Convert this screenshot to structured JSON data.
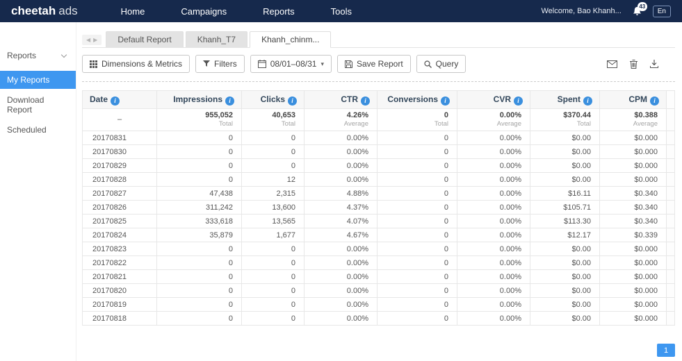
{
  "navbar": {
    "brand_bold": "cheetah",
    "brand_light": "ads",
    "items": [
      {
        "label": "Home"
      },
      {
        "label": "Campaigns"
      },
      {
        "label": "Reports"
      },
      {
        "label": "Tools"
      }
    ],
    "welcome": "Welcome,",
    "username": "Bao Khanh...",
    "notification_count": "43",
    "language": "En"
  },
  "sidebar": {
    "section": "Reports",
    "items": [
      {
        "label": "My Reports",
        "active": true
      },
      {
        "label": "Download Report",
        "active": false
      },
      {
        "label": "Scheduled",
        "active": false
      }
    ]
  },
  "tabs": [
    {
      "label": "Default Report",
      "active": false
    },
    {
      "label": "Khanh_T7",
      "active": false
    },
    {
      "label": "Khanh_chinm...",
      "active": true
    }
  ],
  "toolbar": {
    "dimensions_metrics_label": "Dimensions & Metrics",
    "filters_label": "Filters",
    "date_range": "08/01–08/31",
    "save_report_label": "Save Report",
    "query_label": "Query"
  },
  "icons": {
    "prev_arrow": "◀",
    "next_arrow": "▶",
    "caret_down": "▾",
    "info_glyph": "i"
  },
  "table": {
    "columns": [
      "Date",
      "Impressions",
      "Clicks",
      "CTR",
      "Conversions",
      "CVR",
      "Spent",
      "CPM"
    ],
    "summary": {
      "date": "–",
      "values": [
        {
          "value": "955,052",
          "sub": "Total"
        },
        {
          "value": "40,653",
          "sub": "Total"
        },
        {
          "value": "4.26%",
          "sub": "Average"
        },
        {
          "value": "0",
          "sub": "Total"
        },
        {
          "value": "0.00%",
          "sub": "Average"
        },
        {
          "value": "$370.44",
          "sub": "Total"
        },
        {
          "value": "$0.388",
          "sub": "Average"
        }
      ]
    },
    "rows": [
      [
        "20170831",
        "0",
        "0",
        "0.00%",
        "0",
        "0.00%",
        "$0.00",
        "$0.000"
      ],
      [
        "20170830",
        "0",
        "0",
        "0.00%",
        "0",
        "0.00%",
        "$0.00",
        "$0.000"
      ],
      [
        "20170829",
        "0",
        "0",
        "0.00%",
        "0",
        "0.00%",
        "$0.00",
        "$0.000"
      ],
      [
        "20170828",
        "0",
        "12",
        "0.00%",
        "0",
        "0.00%",
        "$0.00",
        "$0.000"
      ],
      [
        "20170827",
        "47,438",
        "2,315",
        "4.88%",
        "0",
        "0.00%",
        "$16.11",
        "$0.340"
      ],
      [
        "20170826",
        "311,242",
        "13,600",
        "4.37%",
        "0",
        "0.00%",
        "$105.71",
        "$0.340"
      ],
      [
        "20170825",
        "333,618",
        "13,565",
        "4.07%",
        "0",
        "0.00%",
        "$113.30",
        "$0.340"
      ],
      [
        "20170824",
        "35,879",
        "1,677",
        "4.67%",
        "0",
        "0.00%",
        "$12.17",
        "$0.339"
      ],
      [
        "20170823",
        "0",
        "0",
        "0.00%",
        "0",
        "0.00%",
        "$0.00",
        "$0.000"
      ],
      [
        "20170822",
        "0",
        "0",
        "0.00%",
        "0",
        "0.00%",
        "$0.00",
        "$0.000"
      ],
      [
        "20170821",
        "0",
        "0",
        "0.00%",
        "0",
        "0.00%",
        "$0.00",
        "$0.000"
      ],
      [
        "20170820",
        "0",
        "0",
        "0.00%",
        "0",
        "0.00%",
        "$0.00",
        "$0.000"
      ],
      [
        "20170819",
        "0",
        "0",
        "0.00%",
        "0",
        "0.00%",
        "$0.00",
        "$0.000"
      ],
      [
        "20170818",
        "0",
        "0",
        "0.00%",
        "0",
        "0.00%",
        "$0.00",
        "$0.000"
      ]
    ]
  },
  "pagination": {
    "page": "1"
  },
  "colors": {
    "navbar_bg": "#16294c",
    "accent_blue": "#3e97f0",
    "info_icon_blue": "#3a8fde"
  }
}
